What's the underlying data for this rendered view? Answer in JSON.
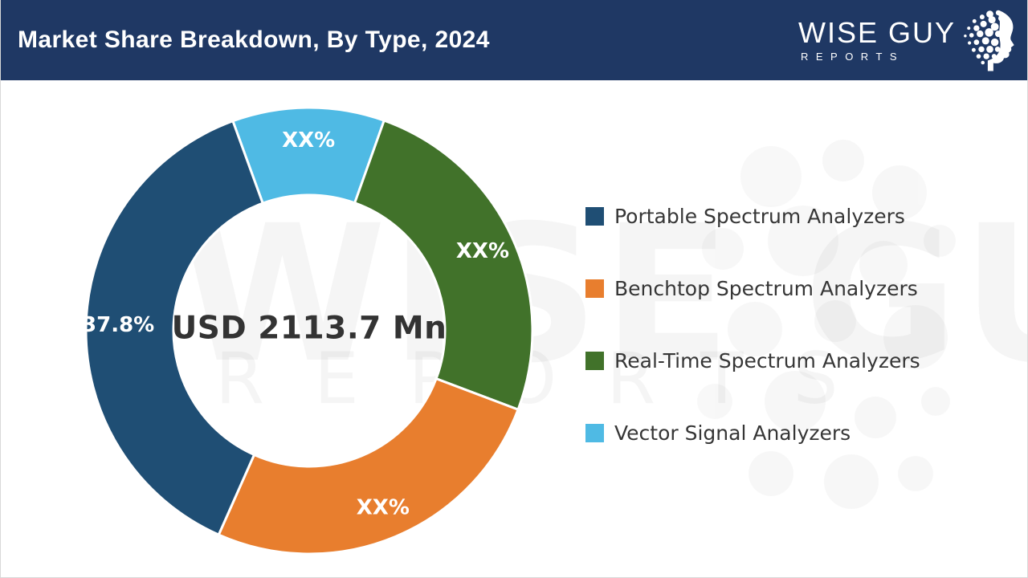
{
  "header": {
    "title": "Market Share Breakdown, By Type, 2024",
    "bg_color": "#1F3864",
    "logo": {
      "line1": "WISE GUY",
      "line2": "REPORTS"
    }
  },
  "watermark": {
    "line1": "WISE GUY",
    "line2": "REPORTS"
  },
  "chart_data": {
    "type": "pie",
    "subtype": "donut",
    "title": "Market Share Breakdown, By Type, 2024",
    "center_label": "USD 2113.7 Mn",
    "start_angle_deg": -20,
    "legend_position": "right",
    "segments": [
      {
        "name": "Vector Signal Analyzers",
        "value_pct": 11.0,
        "shown_label": "XX%",
        "color": "#4FBAE4"
      },
      {
        "name": "Real-Time Spectrum Analyzers",
        "value_pct": 25.3,
        "shown_label": "XX%",
        "color": "#41722A"
      },
      {
        "name": "Benchtop Spectrum Analyzers",
        "value_pct": 25.9,
        "shown_label": "XX%",
        "color": "#E87E2E"
      },
      {
        "name": "Portable Spectrum Analyzers",
        "value_pct": 37.8,
        "shown_label": "37.8%",
        "color": "#1F4E74"
      }
    ],
    "legend": [
      {
        "label": "Portable Spectrum Analyzers",
        "color": "#1F4E74"
      },
      {
        "label": "Benchtop Spectrum Analyzers",
        "color": "#E87E2E"
      },
      {
        "label": "Real-Time Spectrum Analyzers",
        "color": "#41722A"
      },
      {
        "label": "Vector Signal Analyzers",
        "color": "#4FBAE4"
      }
    ]
  }
}
